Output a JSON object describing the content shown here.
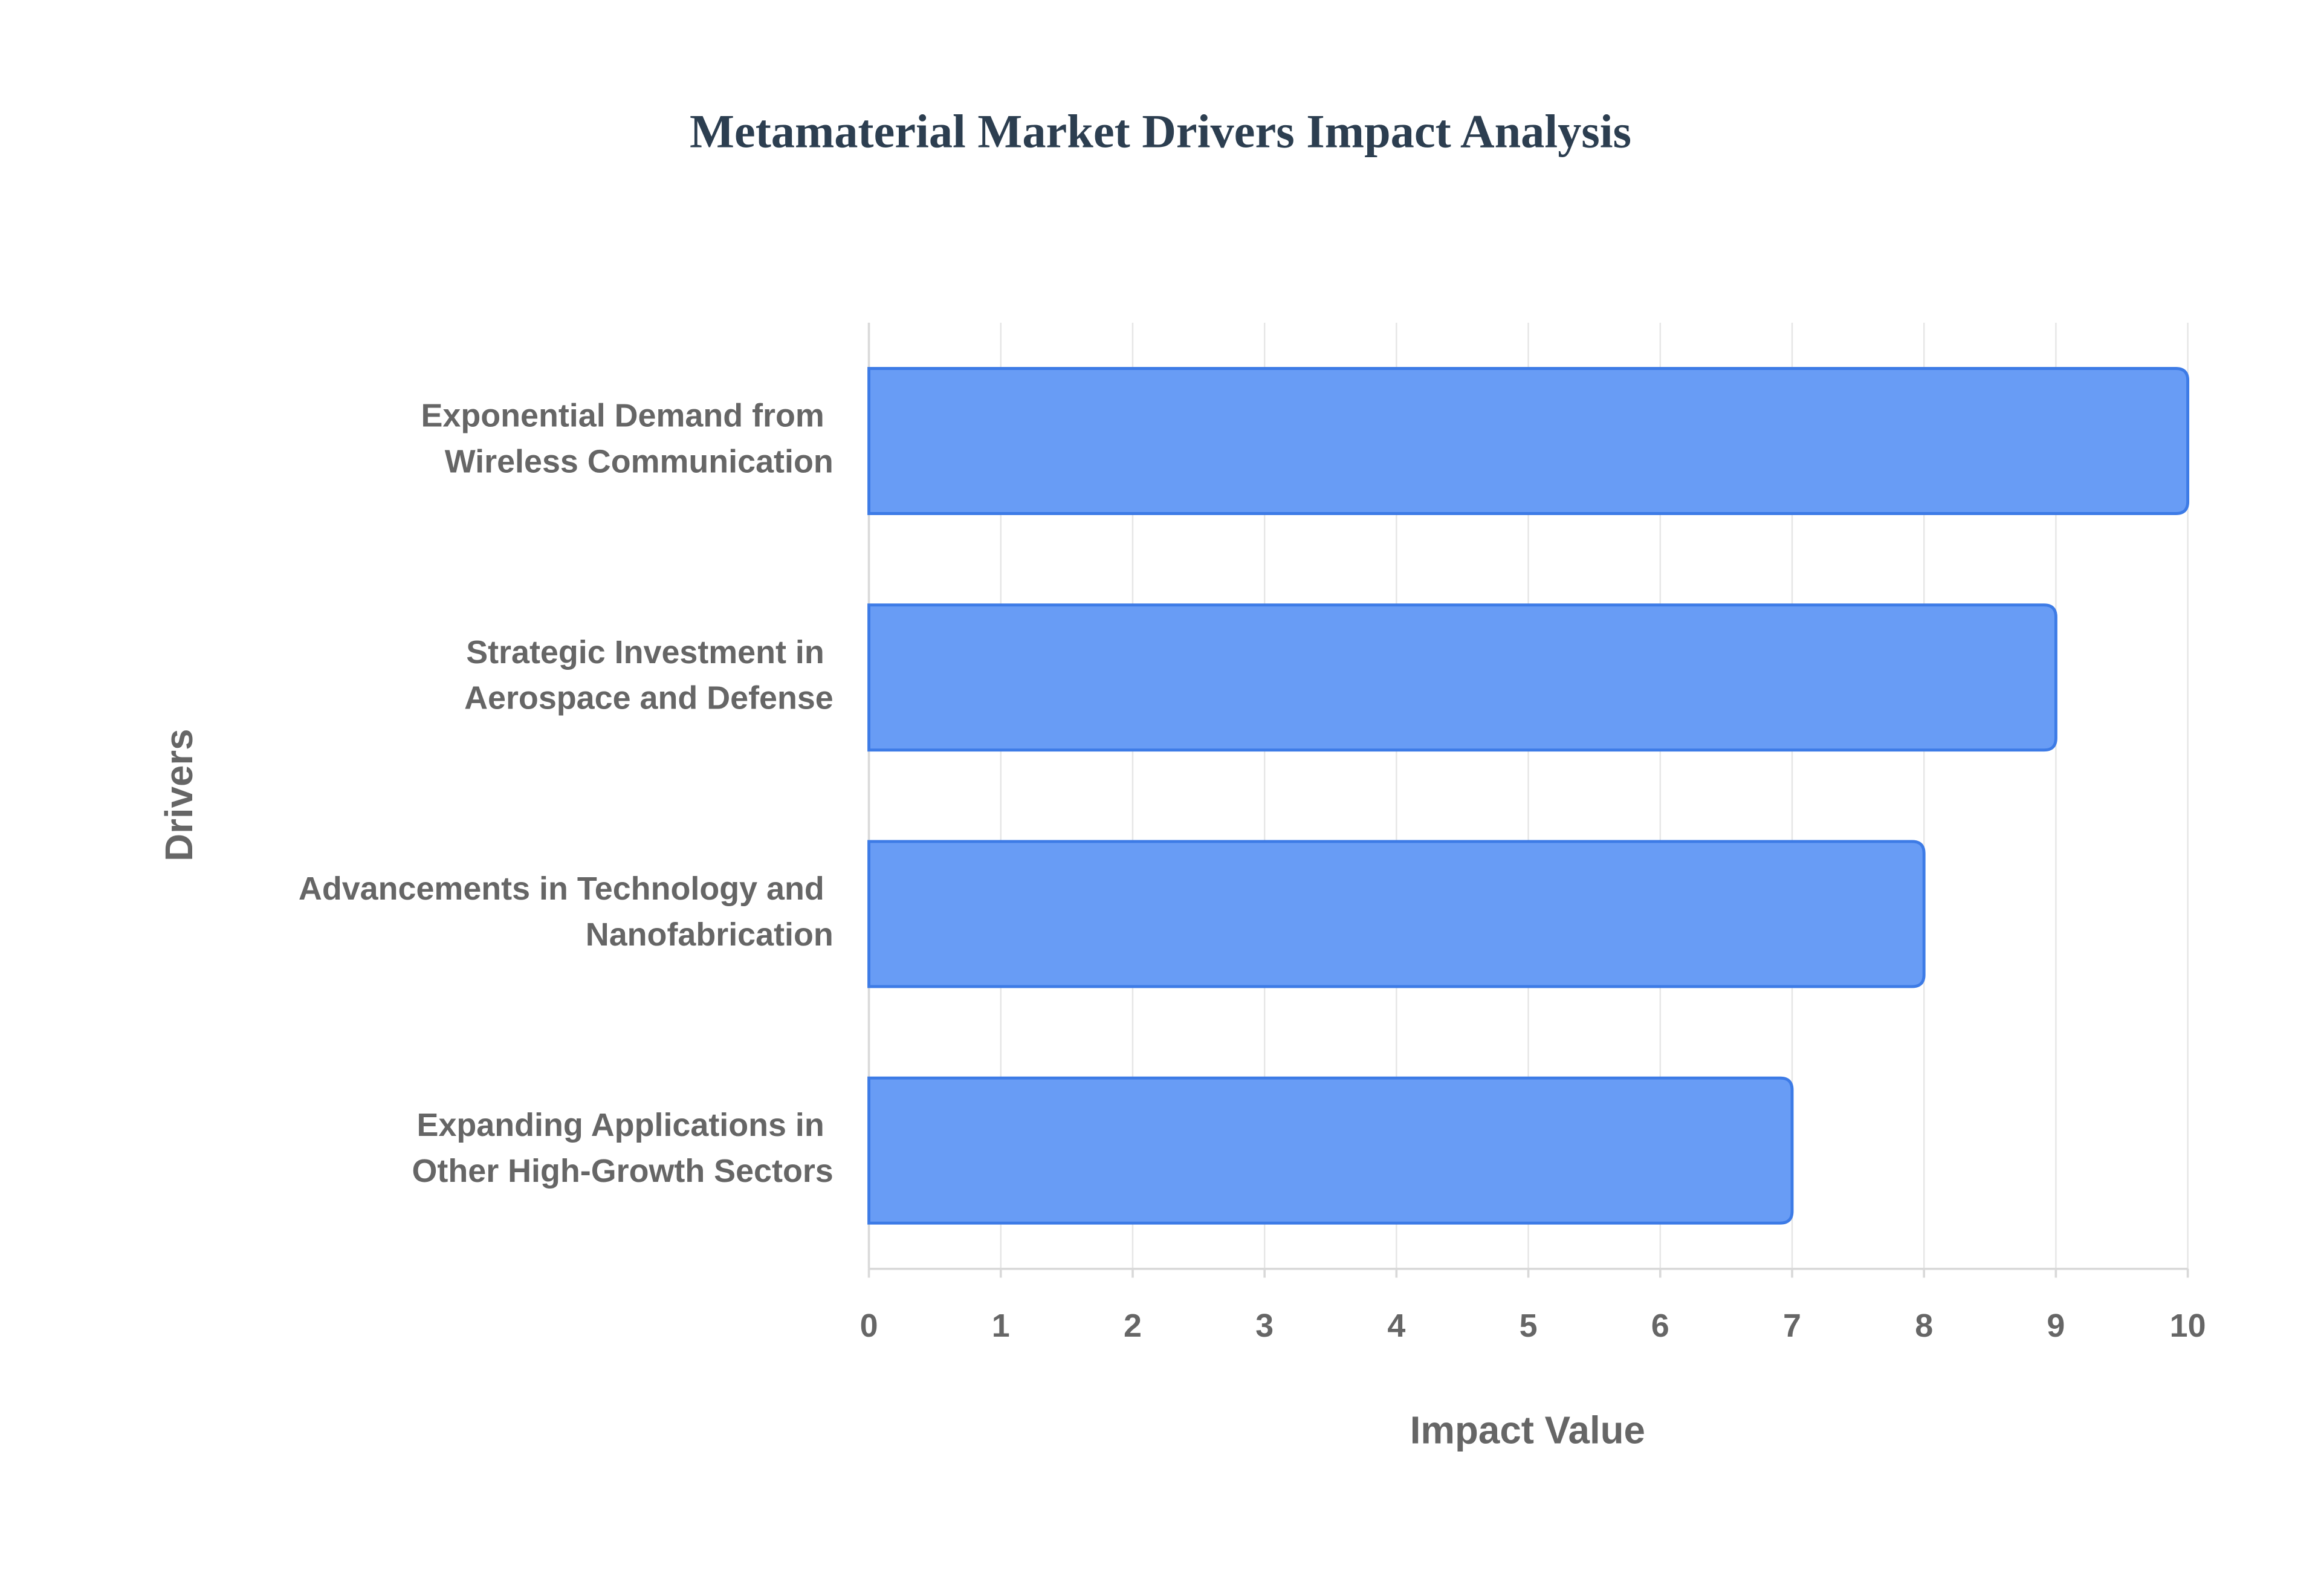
{
  "chart_data": {
    "type": "bar",
    "orientation": "horizontal",
    "title": "Metamaterial Market Drivers Impact Analysis",
    "x_label": "Impact Value",
    "y_label": "Drivers",
    "categories": [
      "Exponential Demand from Wireless Communication",
      "Strategic Investment in Aerospace and Defense",
      "Advancements in Technology and Nanofabrication",
      "Expanding Applications in Other High-Growth Sectors"
    ],
    "values": [
      10,
      9,
      8,
      7
    ],
    "color": "#6399f5",
    "xlim": [
      0,
      10
    ],
    "xticks": [
      0,
      1,
      2,
      3,
      4,
      5,
      6,
      7,
      8,
      9,
      10
    ],
    "grid": true
  }
}
